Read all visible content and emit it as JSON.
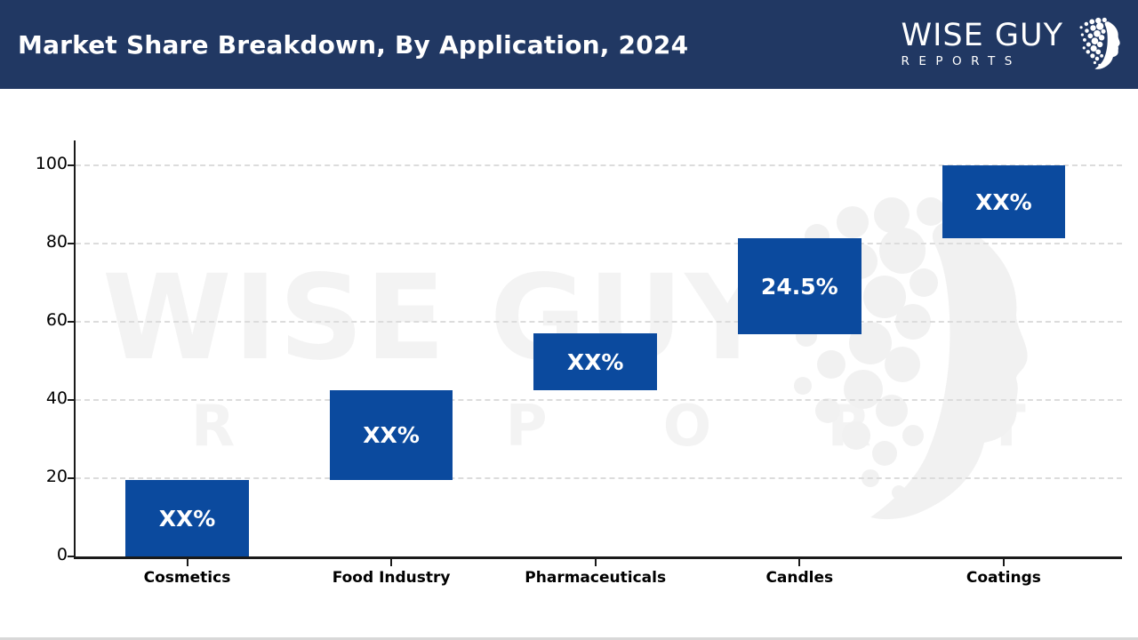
{
  "header": {
    "title": "Market Share Breakdown, By Application, 2024",
    "bg_color": "#213863",
    "logo": {
      "line1": "WISE GUY",
      "line2": "REPORTS"
    }
  },
  "watermark": {
    "line1": "WISE GUY",
    "line2": "R E P O R T S"
  },
  "chart_data": {
    "type": "bar",
    "subtype": "floating-waterfall",
    "title": "Market Share Breakdown, By Application, 2024",
    "categories": [
      "Cosmetics",
      "Food Industry",
      "Pharmaceuticals",
      "Candles",
      "Coatings"
    ],
    "segments": [
      {
        "category": "Cosmetics",
        "start": 0,
        "end": 19.5,
        "label": "XX%"
      },
      {
        "category": "Food Industry",
        "start": 19.6,
        "end": 42.5,
        "label": "XX%"
      },
      {
        "category": "Pharmaceuticals",
        "start": 42.5,
        "end": 57,
        "label": "XX%"
      },
      {
        "category": "Candles",
        "start": 56.8,
        "end": 81.3,
        "label": "24.5%"
      },
      {
        "category": "Coatings",
        "start": 81.3,
        "end": 100,
        "label": "XX%"
      }
    ],
    "y_ticks": [
      0,
      20,
      40,
      60,
      80,
      100
    ],
    "ylim": [
      0,
      100
    ],
    "xlabel": "",
    "ylabel": "",
    "grid": "horizontal-dashed",
    "legend": "none",
    "bar_color": "#0b4a9e",
    "bar_label_color": "#ffffff"
  }
}
